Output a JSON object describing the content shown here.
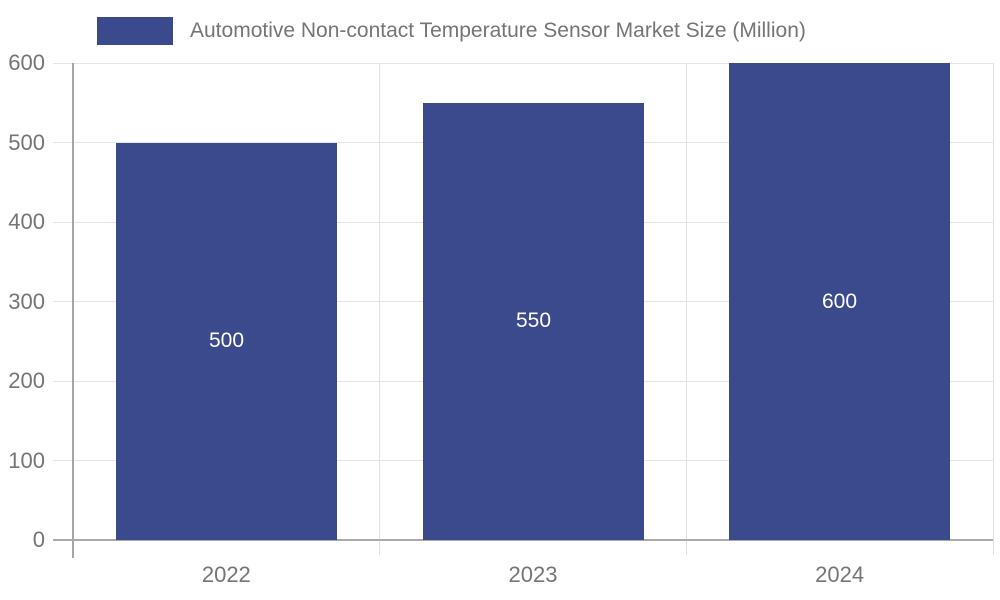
{
  "chart_data": {
    "type": "bar",
    "title": "Automotive Non-contact Temperature Sensor Market Size (Million)",
    "legend": {
      "label": "Automotive Non-contact Temperature Sensor Market Size (Million)",
      "position": "top-left"
    },
    "categories": [
      "2022",
      "2023",
      "2024"
    ],
    "values": [
      500,
      550,
      600
    ],
    "bar_value_labels": [
      "500",
      "550",
      "600"
    ],
    "xlabel": "",
    "ylabel": "",
    "ylim": [
      0,
      600
    ],
    "y_ticks": [
      0,
      100,
      200,
      300,
      400,
      500,
      600
    ],
    "grid": true,
    "colors": {
      "bar": "#3a4a8c",
      "bar_label_text": "#ffffff",
      "axis_text": "#757575",
      "grid_line": "#e5e5e5",
      "axis_line": "#a6a6a6",
      "background": "#ffffff"
    }
  }
}
